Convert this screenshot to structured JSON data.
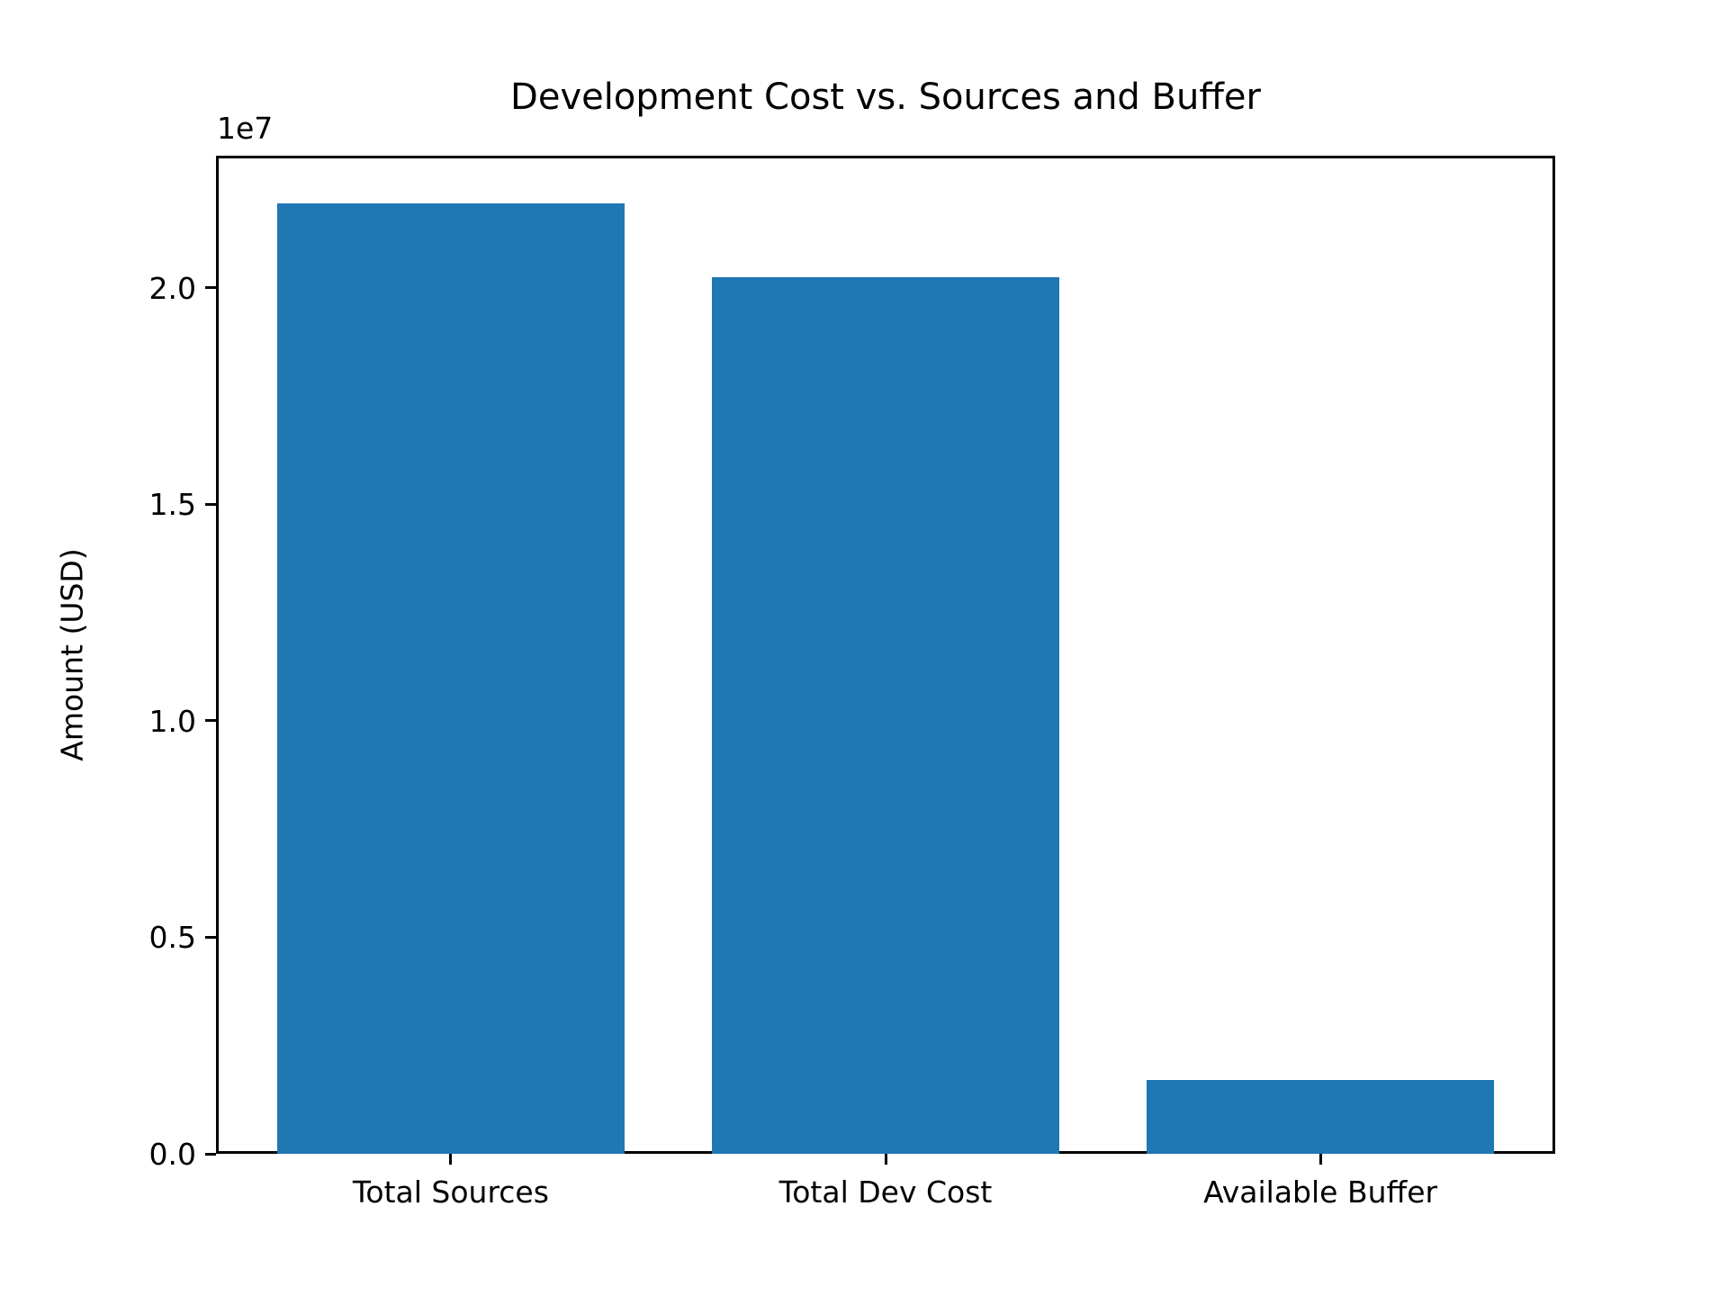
{
  "figure": {
    "background_color": "#ffffff",
    "text_color": "#000000"
  },
  "chart_data": {
    "type": "bar",
    "title": "Development Cost vs. Sources and Buffer",
    "xlabel": "",
    "ylabel": "Amount (USD)",
    "y_offset_label": "1e7",
    "categories": [
      "Total Sources",
      "Total Dev Cost",
      "Available Buffer"
    ],
    "values": [
      21950000,
      20250000,
      1700000
    ],
    "bar_color": "#1f77b4",
    "bar_width_fraction": 0.8,
    "xlim": [
      -0.54,
      2.54
    ],
    "ylim": [
      0,
      23047500
    ],
    "yticks": {
      "values": [
        0,
        5000000,
        10000000,
        15000000,
        20000000
      ],
      "labels": [
        "0.0",
        "0.5",
        "1.0",
        "1.5",
        "2.0"
      ]
    },
    "grid": false
  }
}
